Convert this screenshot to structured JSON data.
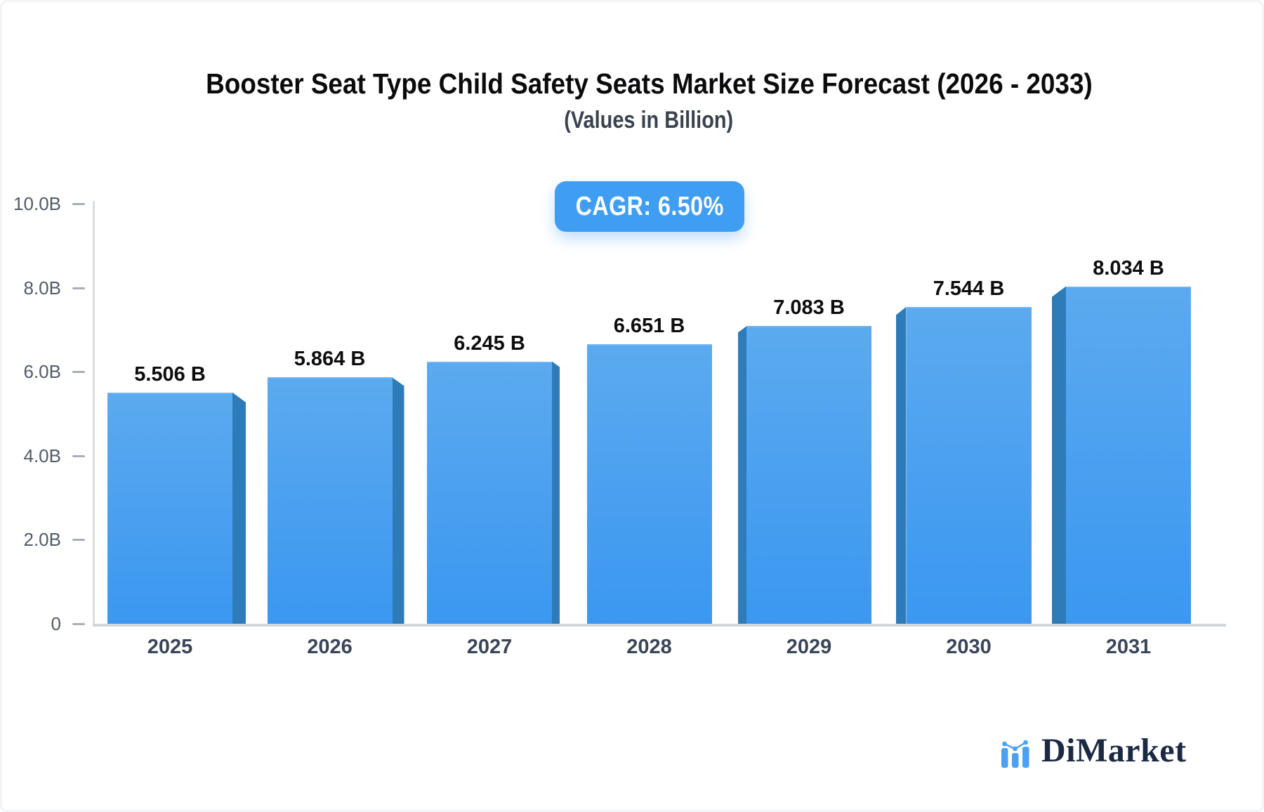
{
  "header": {
    "title": "Booster Seat Type Child Safety Seats Market Size Forecast (2026 - 2033)",
    "subtitle": "(Values in Billion)",
    "cagr_label": "CAGR: 6.50%"
  },
  "branding": {
    "name": "DiMarket",
    "icon": "mini-bar-chart-icon"
  },
  "chart_data": {
    "type": "bar",
    "title": "Booster Seat Type Child Safety Seats Market Size Forecast (2026 - 2033)",
    "subtitle": "(Values in Billion)",
    "cagr": "6.50%",
    "categories": [
      "2025",
      "2026",
      "2027",
      "2028",
      "2029",
      "2030",
      "2031"
    ],
    "values": [
      5.506,
      5.864,
      6.245,
      6.651,
      7.083,
      7.544,
      8.034
    ],
    "value_labels": [
      "5.506 B",
      "5.864 B",
      "6.245 B",
      "6.651 B",
      "7.083 B",
      "7.544 B",
      "8.034 B"
    ],
    "ylabel_ticks": [
      "0",
      "2.0B",
      "4.0B",
      "6.0B",
      "8.0B",
      "10.0B"
    ],
    "ytick_values": [
      0,
      2,
      4,
      6,
      8,
      10
    ],
    "ylim": [
      0,
      10
    ],
    "grid": false,
    "legend": "none",
    "colors": {
      "bar_top": "#5baaef",
      "bar_bottom": "#3b97f0",
      "bar_side": "#2e7bb9",
      "badge": "#3f9df2",
      "axis": "#d2d5da",
      "tick_dash": "#a9aeb7"
    }
  }
}
